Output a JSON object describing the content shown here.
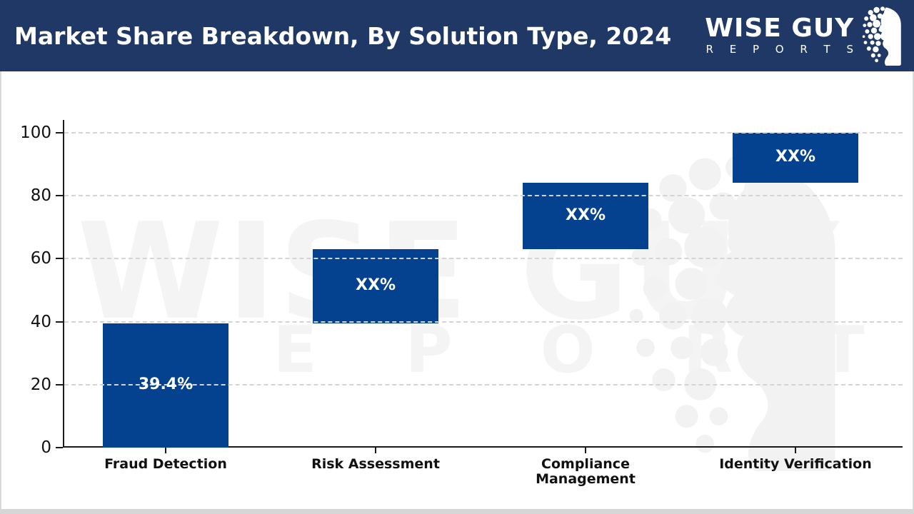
{
  "header": {
    "title": "Market Share Breakdown, By Solution Type, 2024",
    "logo": {
      "line1": "WISE GUY",
      "line2": "R E P O R T S"
    }
  },
  "watermark": {
    "line1": "WISE GUY",
    "line2": "R E P O R T S"
  },
  "colors": {
    "header_bg": "#1f3866",
    "bar": "#04418f",
    "axis": "#1a1a1a",
    "grid": "#d4d4d4",
    "watermark": "#f4f4f5"
  },
  "chart_data": {
    "type": "bar",
    "subtype": "waterfall",
    "title": "Market Share Breakdown, By Solution Type, 2024",
    "categories": [
      "Fraud Detection",
      "Risk Assessment",
      "Compliance Management",
      "Identity Verification"
    ],
    "segments": [
      {
        "category": "Fraud Detection",
        "start": 0,
        "end": 39.4,
        "label": "39.4%"
      },
      {
        "category": "Risk Assessment",
        "start": 39.4,
        "end": 63.0,
        "label": "XX%"
      },
      {
        "category": "Compliance Management",
        "start": 63.0,
        "end": 84.1,
        "label": "XX%"
      },
      {
        "category": "Identity Verification",
        "start": 84.1,
        "end": 100,
        "label": "XX%"
      }
    ],
    "xlabel": "",
    "ylabel": "",
    "ylim": [
      0,
      100
    ],
    "yticks": [
      0,
      20,
      40,
      60,
      80,
      100
    ],
    "grid": "horizontal-dashed",
    "legend": "none",
    "bar_color": "#04418f"
  }
}
